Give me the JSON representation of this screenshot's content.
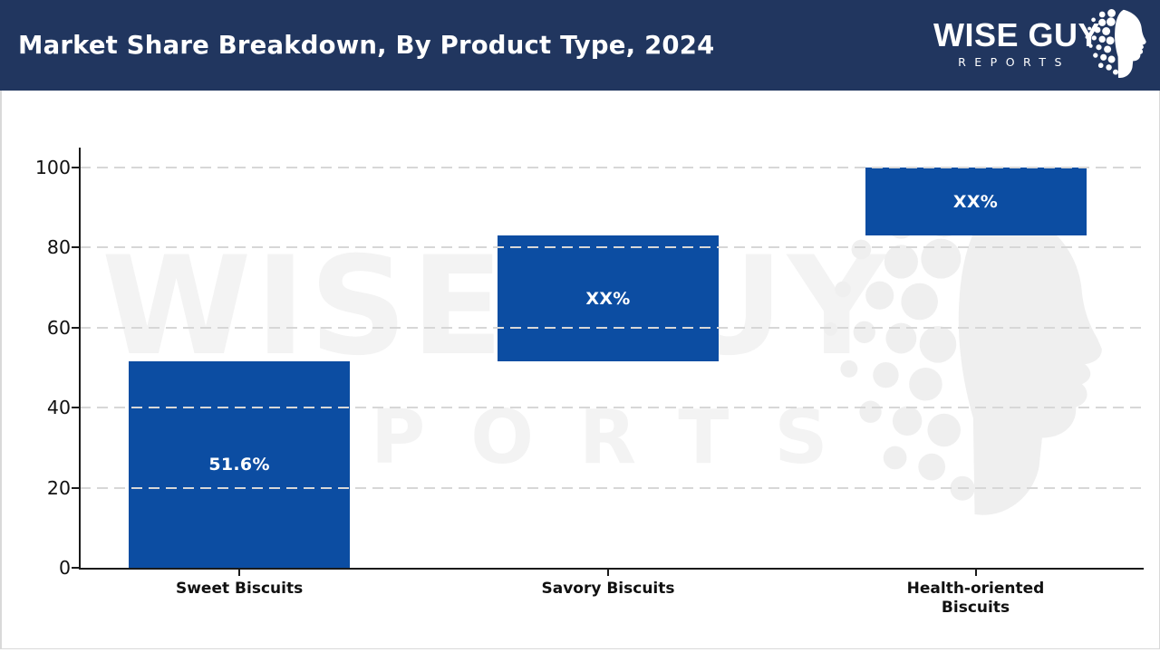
{
  "header": {
    "title": "Market Share Breakdown, By Product Type, 2024",
    "logo": {
      "brand": "WISE GUY",
      "sub": "REPORTS"
    }
  },
  "watermark": {
    "line1": "WISE GUY",
    "line2": "REPORTS"
  },
  "colors": {
    "header_bg": "#21365f",
    "bar": "#0c4da2",
    "grid": "#d7d7d7",
    "axis": "#1a1a1a",
    "bar_label": "#ffffff",
    "watermark": "#f3f3f3",
    "edge_border": "#d9d9d9"
  },
  "chart_data": {
    "type": "bar",
    "subtype": "stacked-percentage-waterfall",
    "title": "Market Share Breakdown, By Product Type, 2024",
    "categories": [
      "Sweet Biscuits",
      "Savory Biscuits",
      "Health-oriented Biscuits"
    ],
    "bars": [
      {
        "category": "Sweet Biscuits",
        "start": 0,
        "end": 51.6,
        "segment_value": 51.6,
        "label": "51.6%"
      },
      {
        "category": "Savory Biscuits",
        "start": 51.6,
        "end": 83,
        "segment_value": 31.4,
        "label": "XX%"
      },
      {
        "category": "Health-oriented Biscuits",
        "start": 83,
        "end": 100,
        "segment_value": 17,
        "label": "XX%"
      }
    ],
    "xlabel": "",
    "ylabel": "",
    "yticks": [
      0,
      20,
      40,
      60,
      80,
      100
    ],
    "ylim": [
      0,
      105
    ],
    "grid": "horizontal-dashed",
    "legend": "none",
    "bar_color": "#0c4da2"
  }
}
